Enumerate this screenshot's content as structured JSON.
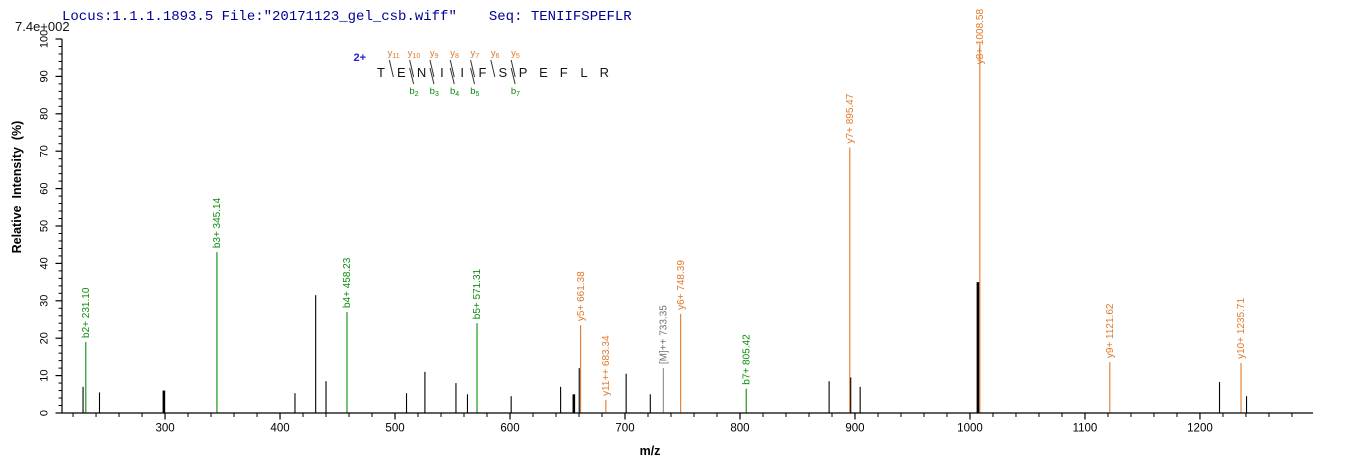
{
  "header": {
    "max_intensity": "7.4e+002",
    "locus_file": "Locus:1.1.1.1893.5 File:\"20171123_gel_csb.wiff\"",
    "seq": "Seq: TENIIFSPEFLR"
  },
  "annotation": {
    "charge": "2+",
    "sequence": [
      "T",
      "E",
      "N",
      "I",
      "I",
      "F",
      "S",
      "P",
      "E",
      "F",
      "L",
      "R"
    ],
    "y_marks": [
      {
        "after": 0,
        "label": "y11"
      },
      {
        "after": 1,
        "label": "y10"
      },
      {
        "after": 2,
        "label": "y9"
      },
      {
        "after": 3,
        "label": "y8"
      },
      {
        "after": 4,
        "label": "y7"
      },
      {
        "after": 5,
        "label": "y6"
      },
      {
        "after": 6,
        "label": "y5"
      }
    ],
    "b_marks": [
      {
        "after": 1,
        "label": "b2"
      },
      {
        "after": 2,
        "label": "b3"
      },
      {
        "after": 3,
        "label": "b4"
      },
      {
        "after": 4,
        "label": "b5"
      },
      {
        "after": 6,
        "label": "b7"
      }
    ]
  },
  "colors": {
    "b_ion": "#078c07",
    "y_ion": "#e0792a",
    "precursor_line": "#8a8a8a",
    "precursor_label": "#6e6e6e",
    "peak_black": "#000000",
    "header_navy": "#000099",
    "charge_blue": "#2323cc",
    "axis": "#000000"
  },
  "chart_data": {
    "type": "bar",
    "subtype": "ms2-stick-spectrum",
    "title": "",
    "xlabel": "m/z",
    "ylabel": "Relative  Intensity  (%)",
    "xlim": [
      210.4,
      1298.3
    ],
    "ylim": [
      0,
      100
    ],
    "x_major_ticks": [
      300,
      400,
      500,
      600,
      700,
      800,
      900,
      1000,
      1100,
      1200
    ],
    "x_minor_step": 20,
    "y_major_ticks": [
      0,
      10,
      20,
      30,
      40,
      50,
      60,
      70,
      80,
      90,
      100
    ],
    "y_minor_step": 2,
    "grid": false,
    "legend": false,
    "peaks": [
      {
        "mz": 228.7,
        "intensity": 7.0
      },
      {
        "mz": 231.1,
        "intensity": 19.0,
        "ion": "b",
        "label": "b2+ 231.10"
      },
      {
        "mz": 243.0,
        "intensity": 5.5
      },
      {
        "mz": 299.0,
        "intensity": 6.0,
        "w": 2.6
      },
      {
        "mz": 345.14,
        "intensity": 43.0,
        "ion": "b",
        "label": "b3+ 345.14"
      },
      {
        "mz": 413.0,
        "intensity": 5.3
      },
      {
        "mz": 431.0,
        "intensity": 31.5
      },
      {
        "mz": 440.0,
        "intensity": 8.5
      },
      {
        "mz": 458.23,
        "intensity": 27.0,
        "ion": "b",
        "label": "b4+ 458.23"
      },
      {
        "mz": 510.0,
        "intensity": 5.3
      },
      {
        "mz": 526.0,
        "intensity": 11.0
      },
      {
        "mz": 553.0,
        "intensity": 8.0
      },
      {
        "mz": 563.0,
        "intensity": 5.0
      },
      {
        "mz": 571.31,
        "intensity": 24.0,
        "ion": "b",
        "label": "b5+ 571.31"
      },
      {
        "mz": 601.0,
        "intensity": 4.5
      },
      {
        "mz": 644.0,
        "intensity": 7.0
      },
      {
        "mz": 655.5,
        "intensity": 5.0,
        "w": 2.6
      },
      {
        "mz": 660.2,
        "intensity": 12.0
      },
      {
        "mz": 661.38,
        "intensity": 23.5,
        "ion": "y",
        "label": "y5+ 661.38"
      },
      {
        "mz": 683.34,
        "intensity": 3.5,
        "ion": "y",
        "label": "y11++ 683.34"
      },
      {
        "mz": 701.0,
        "intensity": 10.5
      },
      {
        "mz": 722.0,
        "intensity": 5.0
      },
      {
        "mz": 733.35,
        "intensity": 12.0,
        "ion": "M",
        "label": "[M]++ 733.35"
      },
      {
        "mz": 748.39,
        "intensity": 26.5,
        "ion": "y",
        "label": "y6+ 748.39"
      },
      {
        "mz": 805.42,
        "intensity": 6.5,
        "ion": "b",
        "label": "b7+ 805.42"
      },
      {
        "mz": 877.5,
        "intensity": 8.5
      },
      {
        "mz": 895.47,
        "intensity": 71.0,
        "ion": "y",
        "label": "y7+ 895.47"
      },
      {
        "mz": 896.3,
        "intensity": 9.5
      },
      {
        "mz": 904.5,
        "intensity": 7.0
      },
      {
        "mz": 1006.9,
        "intensity": 35.0,
        "w": 2.6
      },
      {
        "mz": 1008.58,
        "intensity": 99.0,
        "ion": "y",
        "label": "y8+ 1008.58"
      },
      {
        "mz": 1121.62,
        "intensity": 13.6,
        "ion": "y",
        "label": "y9+ 1121.62"
      },
      {
        "mz": 1217.0,
        "intensity": 8.3
      },
      {
        "mz": 1235.71,
        "intensity": 13.4,
        "ion": "y",
        "label": "y10+ 1235.71"
      },
      {
        "mz": 1240.5,
        "intensity": 4.5
      }
    ]
  }
}
